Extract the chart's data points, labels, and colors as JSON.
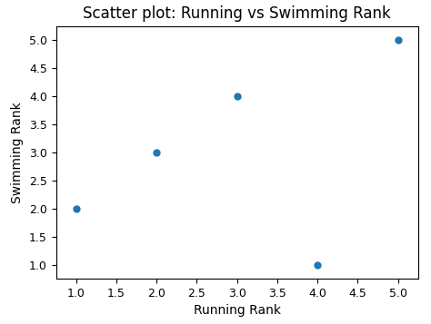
{
  "title": "Scatter plot: Running vs Swimming Rank",
  "xlabel": "Running Rank",
  "ylabel": "Swimming Rank",
  "x": [
    1,
    2,
    3,
    4,
    5
  ],
  "y": [
    2,
    3,
    4,
    1,
    5
  ],
  "dot_color": "#1f77b4",
  "dot_size": 25,
  "xlim": [
    0.75,
    5.25
  ],
  "ylim": [
    0.75,
    5.25
  ],
  "xticks": [
    1.0,
    1.5,
    2.0,
    2.5,
    3.0,
    3.5,
    4.0,
    4.5,
    5.0
  ],
  "yticks": [
    1.0,
    1.5,
    2.0,
    2.5,
    3.0,
    3.5,
    4.0,
    4.5,
    5.0
  ],
  "title_fontsize": 12,
  "label_fontsize": 10,
  "tick_fontsize": 9
}
